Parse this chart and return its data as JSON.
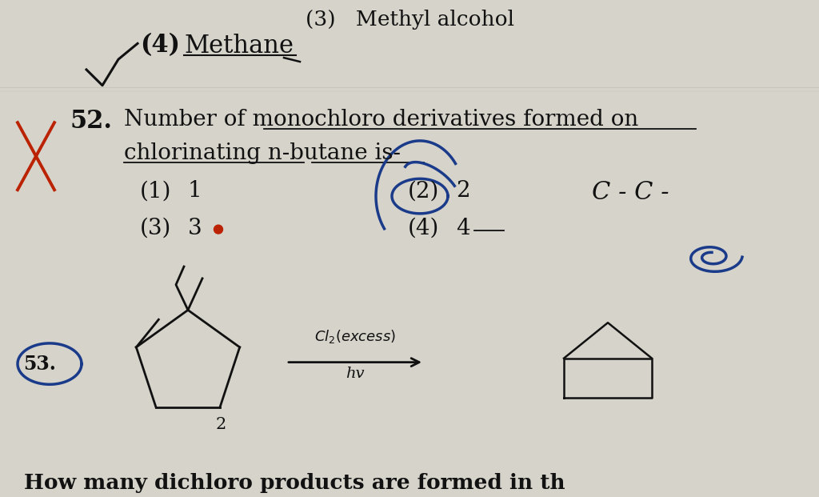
{
  "bg_color": "#c8c5bc",
  "paper_color": "#d6d3ca",
  "font_color": "#1a1a1a",
  "dark_color": "#111111",
  "blue_color": "#1a3a8a",
  "red_color": "#bb2200",
  "title3": "(3)   Methyl alcohol",
  "title4_num": "(4)",
  "title4_word": "Methane",
  "q52_num": "52.",
  "q52_line1": "Number of monochloro derivatives formed on",
  "q52_line2": "chlorinating n-butane is-",
  "opt1_label": "(1)",
  "opt1_val": "1",
  "opt2_label": "(2)",
  "opt2_val": "2",
  "opt3_label": "(3)",
  "opt3_val": "3",
  "opt4_label": "(4)",
  "opt4_val": "4",
  "ccc": "C - C -",
  "q53_label": "53.",
  "cl2_label": "Cl₂(excess)",
  "hv_label": "hv",
  "bottom_text": "How many dichloro products are formed in th"
}
